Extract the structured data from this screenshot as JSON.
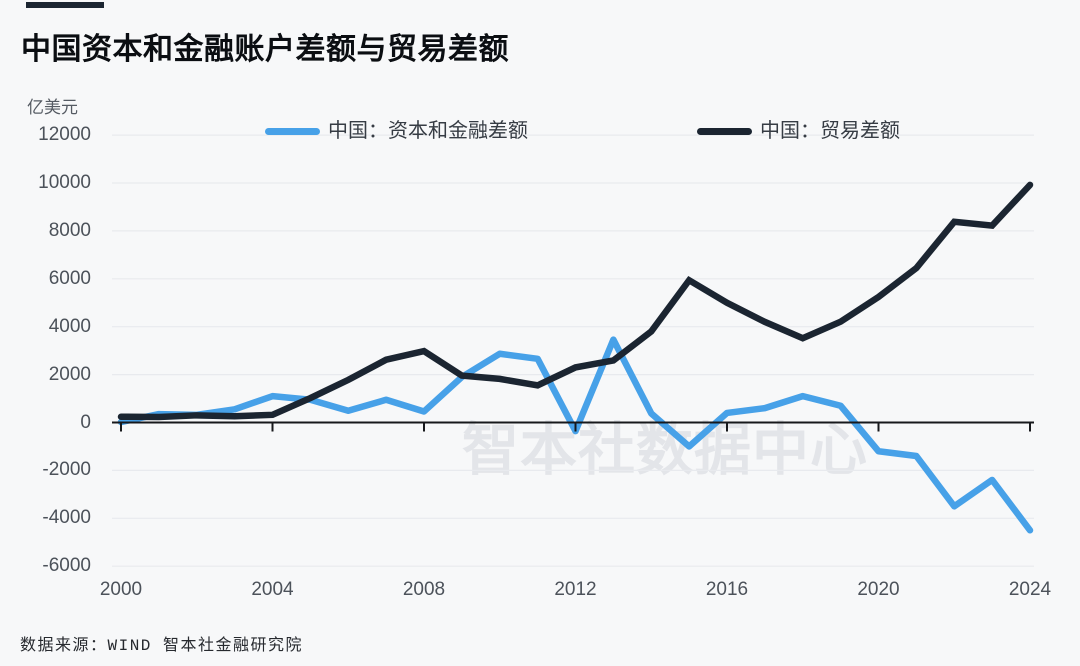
{
  "page": {
    "title": "中国资本和金融账户差额与贸易差额",
    "y_unit_label": "亿美元",
    "watermark": "智本社数据中心",
    "source_note": "数据来源：WIND 智本社金融研究院"
  },
  "colors": {
    "background": "#f7f8f9",
    "accent_bar": "#1b2531",
    "series_capital": "#47a1e8",
    "series_trade": "#1b2531",
    "gridline": "#e8eaee",
    "zero_axis": "#17191c",
    "tick_label": "#4c525a",
    "watermark": "#e3e5e9"
  },
  "legend": [
    {
      "label": "中国：资本和金融差额",
      "color": "#47a1e8"
    },
    {
      "label": "中国：贸易差额",
      "color": "#1b2531"
    }
  ],
  "chart_data": {
    "type": "line",
    "title": "中国资本和金融账户差额与贸易差额",
    "ylabel": "亿美元",
    "xlabel": "",
    "grid": true,
    "legend_position": "top",
    "ylim": [
      -6000,
      12000
    ],
    "y_ticks": [
      12000,
      10000,
      8000,
      6000,
      4000,
      2000,
      0,
      -2000,
      -4000,
      -6000
    ],
    "x_ticks": [
      2000,
      2004,
      2008,
      2012,
      2016,
      2020,
      2024
    ],
    "x": [
      2000,
      2001,
      2002,
      2003,
      2004,
      2005,
      2006,
      2007,
      2008,
      2009,
      2010,
      2011,
      2012,
      2013,
      2014,
      2015,
      2016,
      2017,
      2018,
      2019,
      2020,
      2021,
      2022,
      2023,
      2024
    ],
    "series": [
      {
        "name": "中国：资本和金融差额",
        "color": "#47a1e8",
        "values": [
          20,
          350,
          320,
          550,
          1100,
          950,
          490,
          950,
          460,
          1900,
          2870,
          2660,
          -360,
          3460,
          380,
          -1000,
          400,
          600,
          1100,
          700,
          -1200,
          -1400,
          -3500,
          -2400,
          -4500
        ]
      },
      {
        "name": "中国：贸易差额",
        "color": "#1b2531",
        "values": [
          240,
          230,
          300,
          260,
          320,
          1020,
          1780,
          2620,
          2980,
          1960,
          1820,
          1550,
          2300,
          2590,
          3800,
          5940,
          5000,
          4200,
          3520,
          4210,
          5240,
          6450,
          8380,
          8220,
          9920
        ]
      }
    ]
  }
}
